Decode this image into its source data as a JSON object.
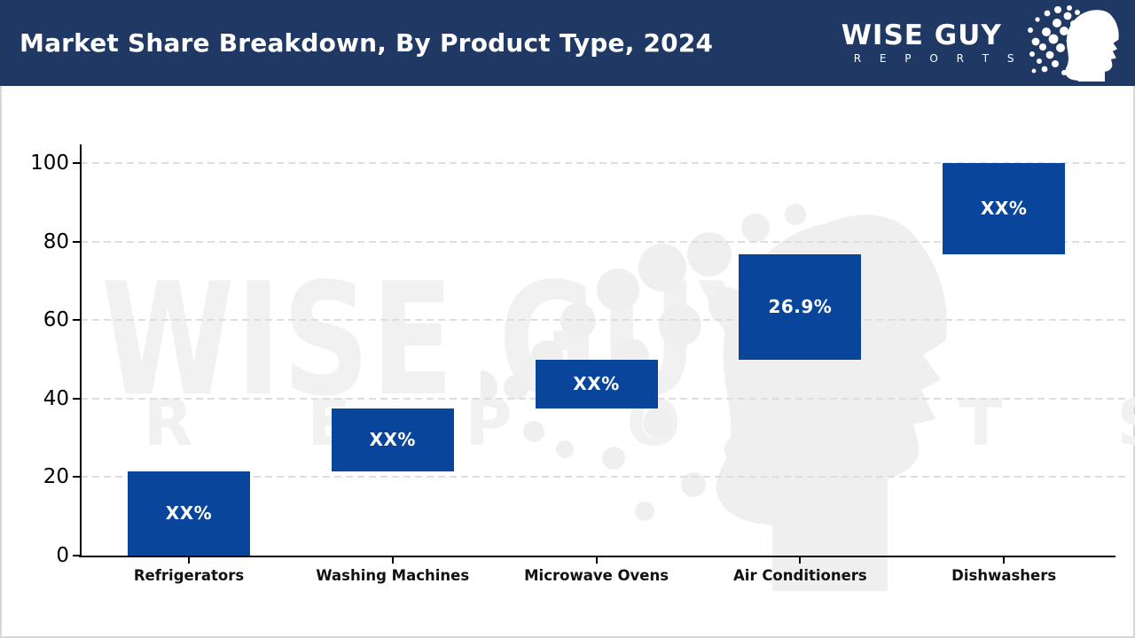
{
  "header": {
    "title": "Market Share Breakdown, By Product Type, 2024",
    "brand": {
      "line1": "WISE GUY",
      "line2": "R E P O R T S",
      "icon": "head-dots-icon"
    }
  },
  "watermark": {
    "line1": "WISE GUY",
    "line2": "R E P O R T S"
  },
  "colors": {
    "header_bg": "#1f3864",
    "bar": "#0a459c",
    "bar_label": "#ffffff",
    "axis": "#000000",
    "gridline": "#dedede",
    "watermark": "#f1f1f1",
    "page_border": "#d7d7d7"
  },
  "chart_data": {
    "type": "bar",
    "subtype": "floating-waterfall",
    "title": "Market Share Breakdown, By Product Type, 2024",
    "xlabel": "",
    "ylabel": "",
    "categories": [
      "Refrigerators",
      "Washing Machines",
      "Microwave Ovens",
      "Air Conditioners",
      "Dishwashers"
    ],
    "segments": [
      {
        "category": "Refrigerators",
        "start": 0,
        "end": 21.5,
        "label": "XX%"
      },
      {
        "category": "Washing Machines",
        "start": 21.5,
        "end": 37.5,
        "label": "XX%"
      },
      {
        "category": "Microwave Ovens",
        "start": 37.5,
        "end": 50.0,
        "label": "XX%"
      },
      {
        "category": "Air Conditioners",
        "start": 50.0,
        "end": 76.9,
        "label": "26.9%"
      },
      {
        "category": "Dishwashers",
        "start": 76.9,
        "end": 100.0,
        "label": "XX%"
      }
    ],
    "yticks": [
      0,
      20,
      40,
      60,
      80,
      100
    ],
    "ylim": [
      0,
      105
    ],
    "grid": "horizontal-dashed",
    "legend": "none"
  }
}
